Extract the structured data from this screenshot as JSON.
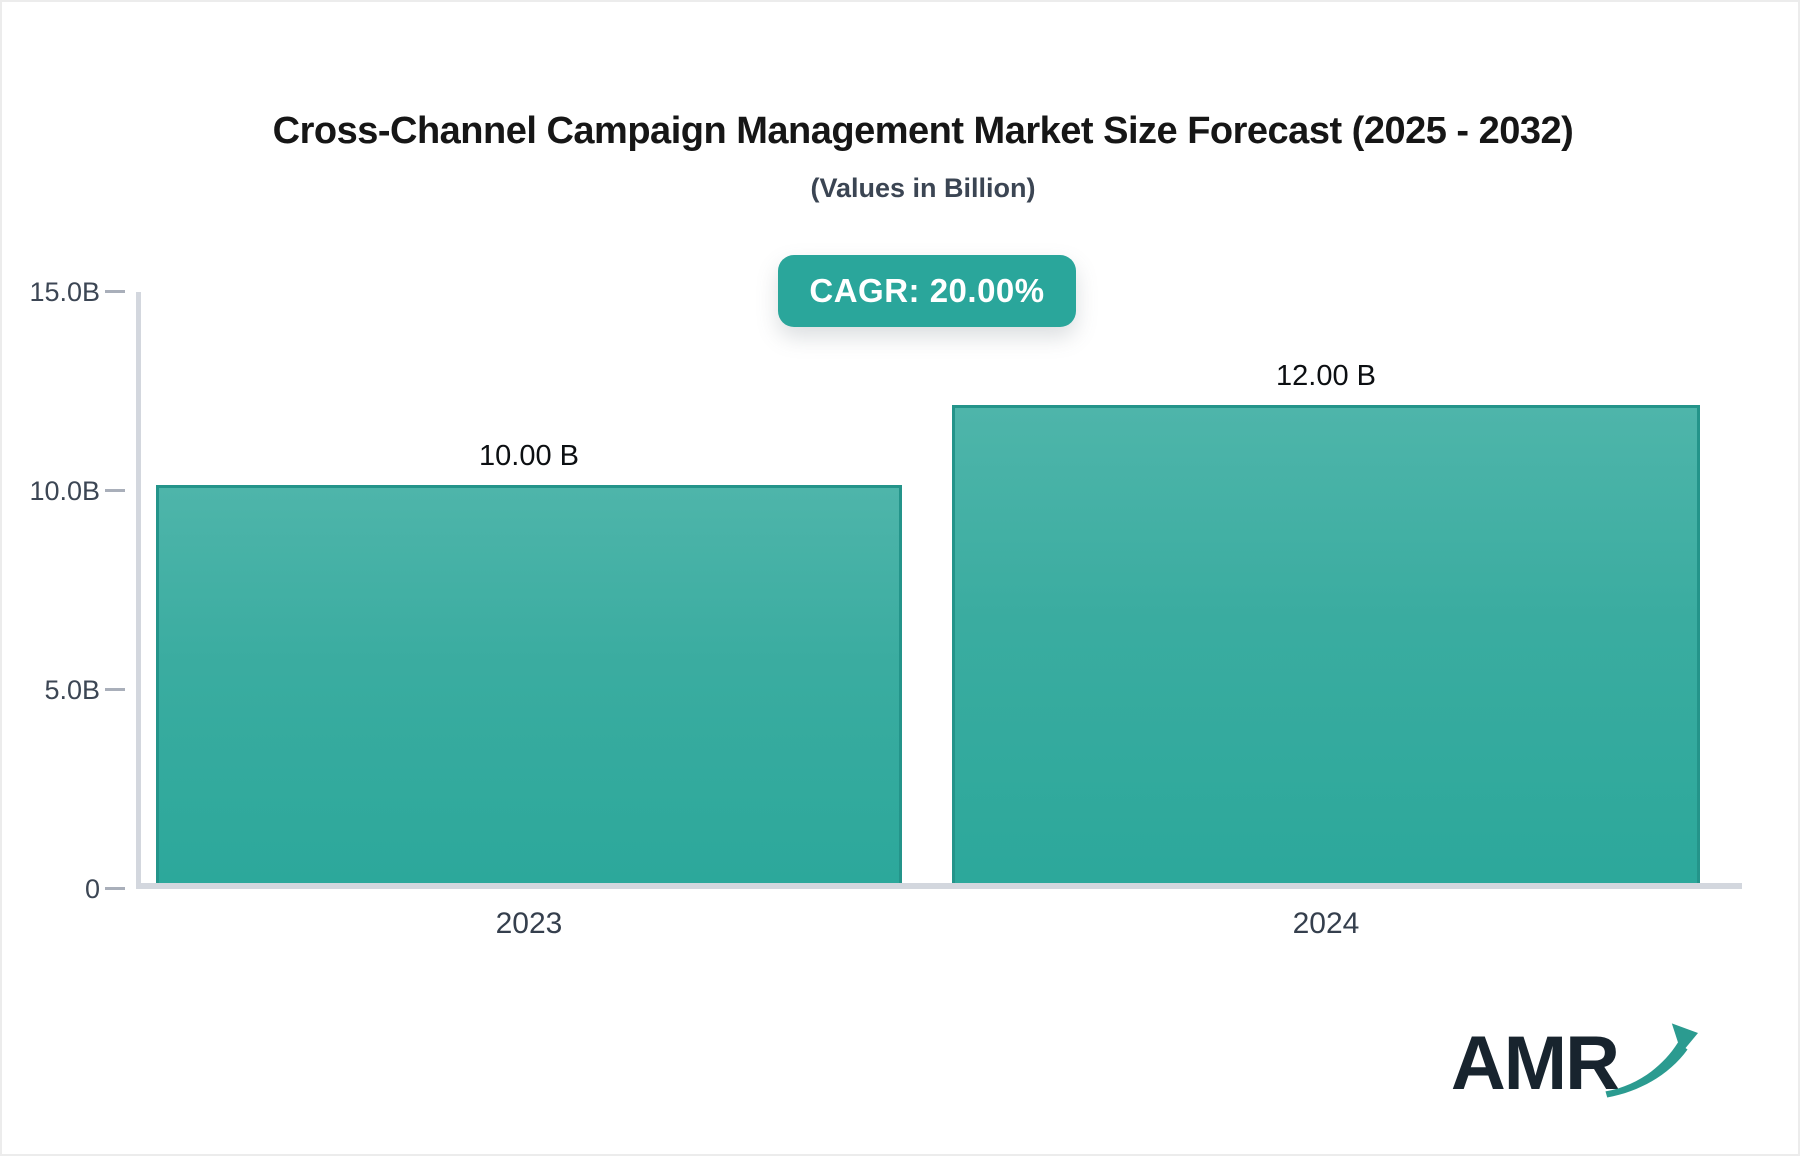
{
  "header": {
    "title": "Cross-Channel Campaign Management Market Size Forecast (2025 - 2032)",
    "subtitle": "(Values in Billion)",
    "cagr_badge": "CAGR: 20.00%"
  },
  "chart_data": {
    "type": "bar",
    "title": "Cross-Channel Campaign Management Market Size Forecast (2025 - 2032)",
    "subtitle": "(Values in Billion)",
    "categories": [
      "2023",
      "2024"
    ],
    "values": [
      10.0,
      12.0
    ],
    "bars": [
      {
        "category": "2023",
        "value": 10.0,
        "label": "10.00 B"
      },
      {
        "category": "2024",
        "value": 12.0,
        "label": "12.00 B"
      }
    ],
    "cagr": "CAGR: 20.00%",
    "ylim": [
      0,
      15
    ],
    "yticks": [
      {
        "label": "15.0B",
        "value": 15
      },
      {
        "label": "10.0B",
        "value": 10
      },
      {
        "label": "5.0B",
        "value": 5
      },
      {
        "label": "0",
        "value": 0
      }
    ],
    "grid": false,
    "legend": false,
    "bar_color_top": "#4eb5aa",
    "bar_color_bottom": "#2ca89b",
    "bar_border_color": "#24948a",
    "axis_color": "#d3d7de",
    "badge_color": "#2aa69b"
  },
  "branding": {
    "logo_text": "AMR",
    "logo_arrow_color": "#2b9b90"
  }
}
